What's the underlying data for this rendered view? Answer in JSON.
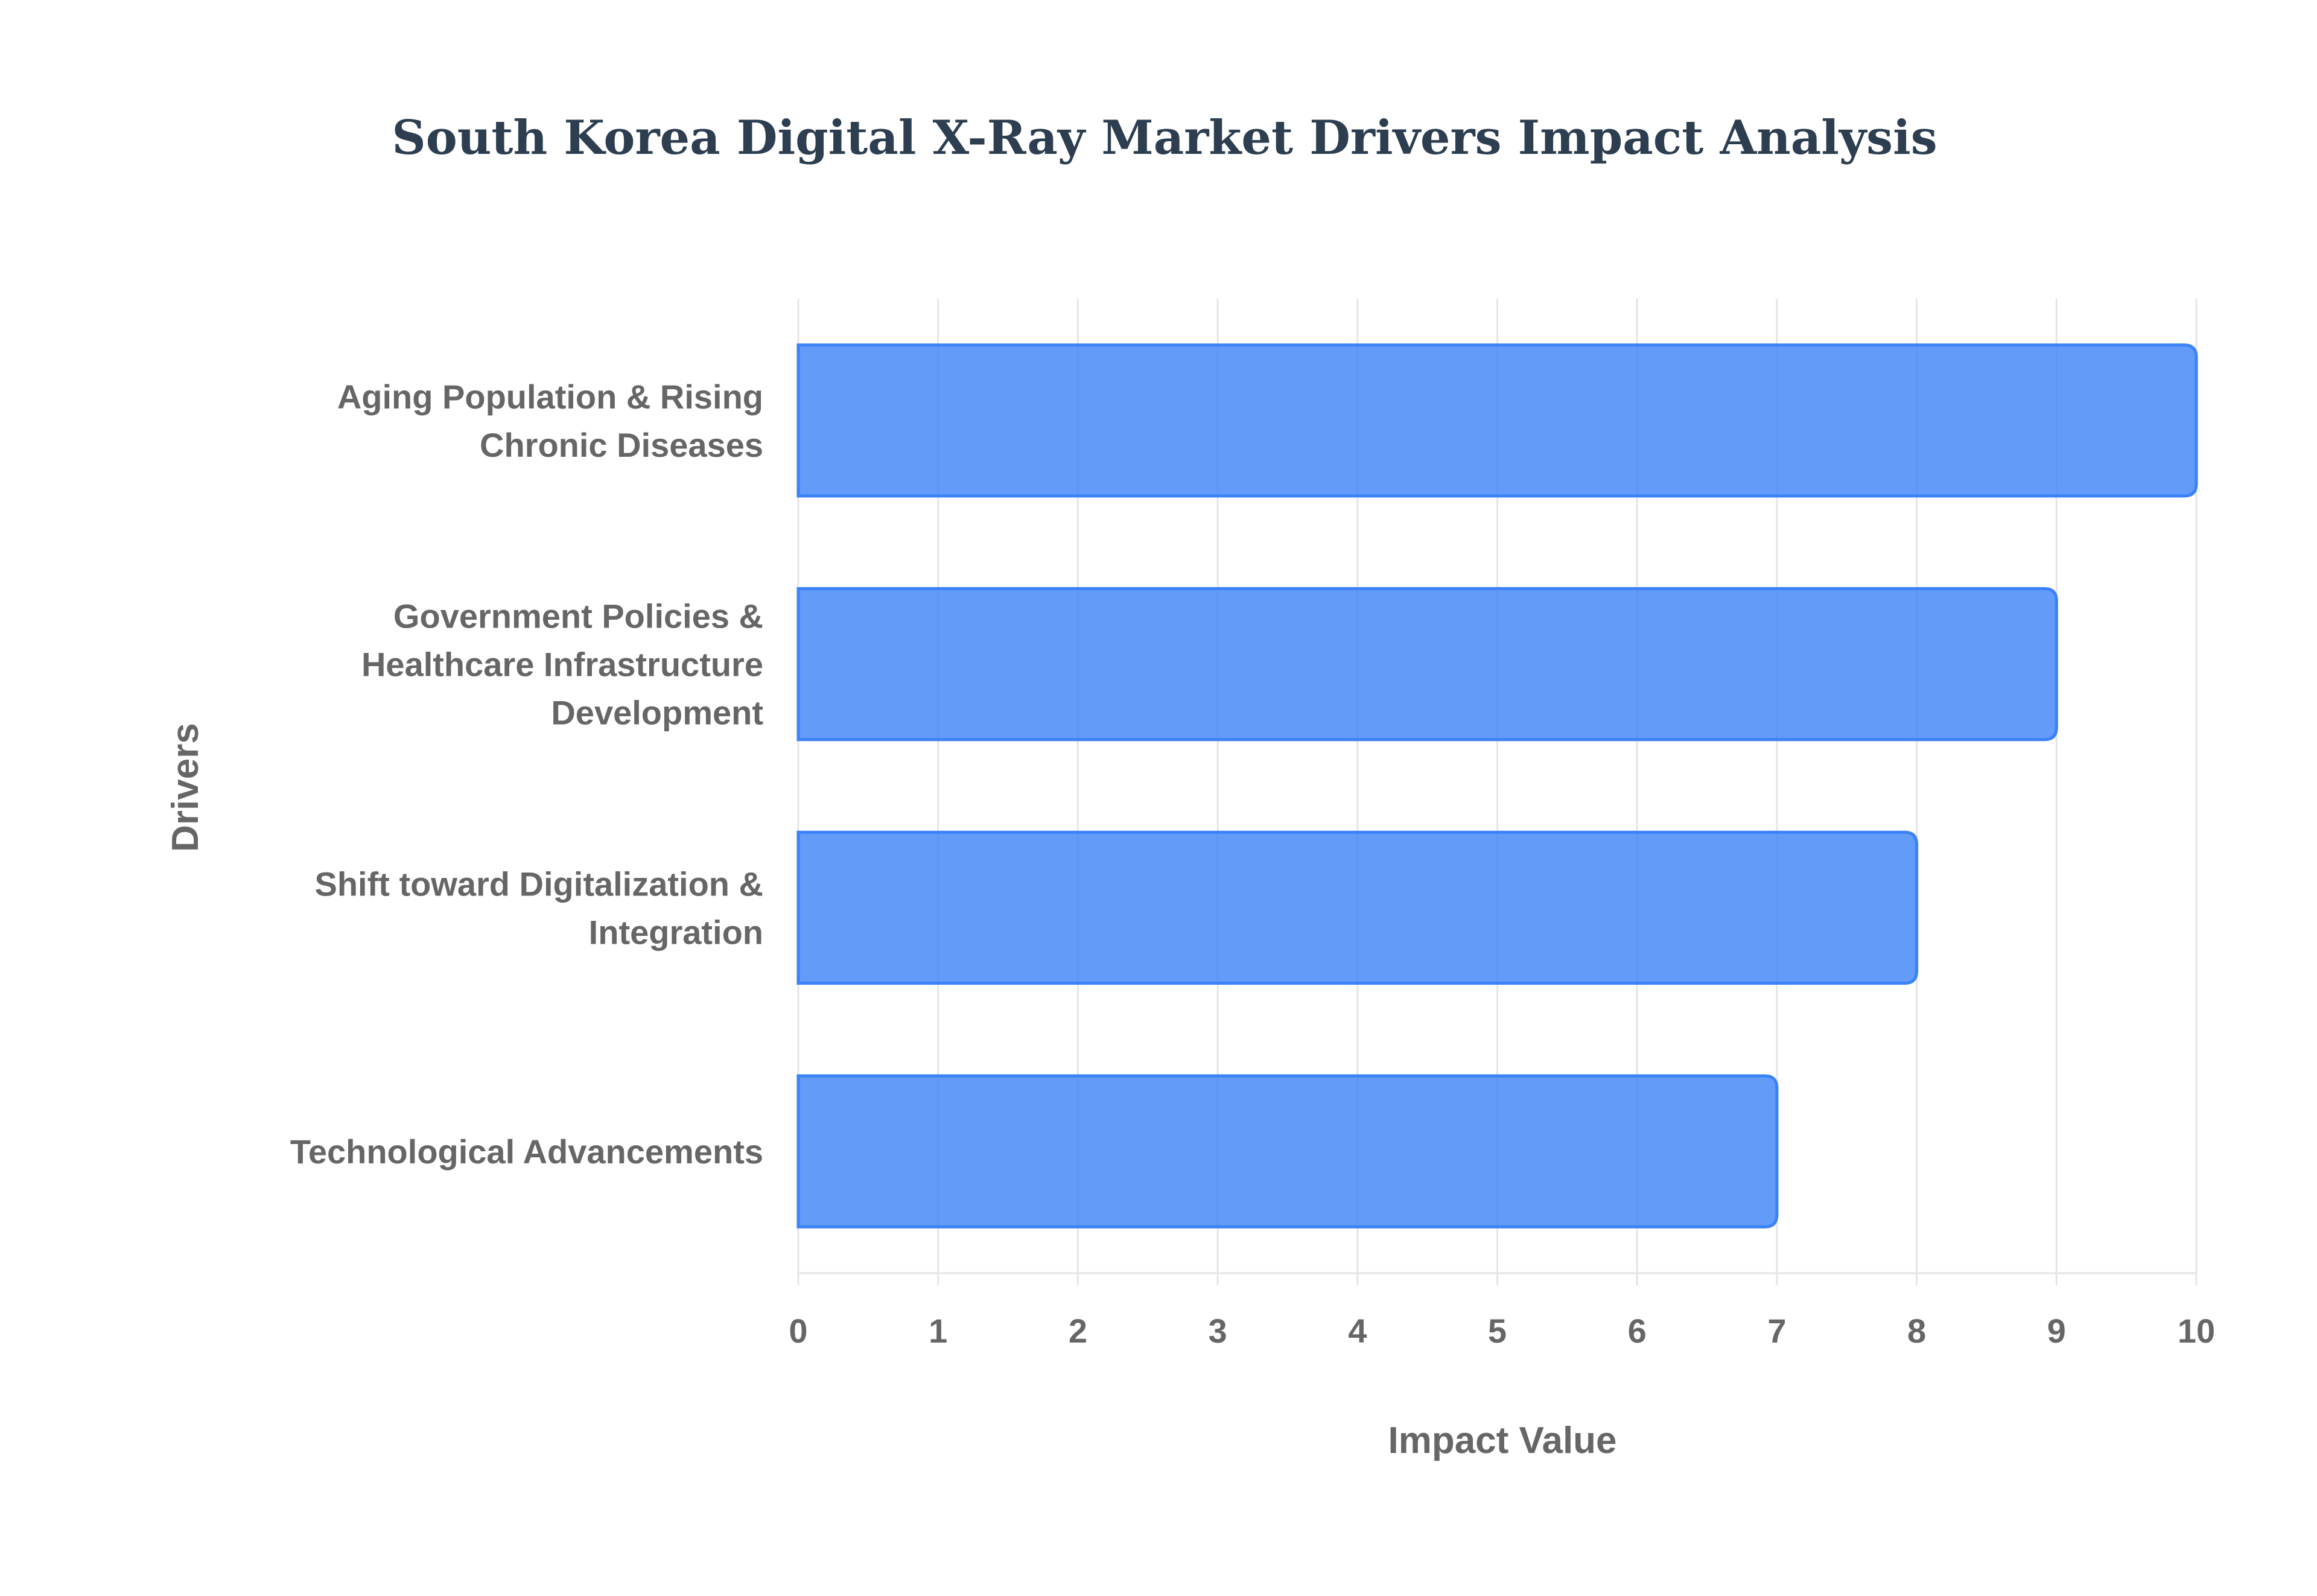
{
  "chart_data": {
    "type": "bar",
    "orientation": "horizontal",
    "title": "South Korea Digital X-Ray Market Drivers Impact Analysis",
    "xlabel": "Impact Value",
    "ylabel": "Drivers",
    "categories": [
      [
        "Aging Population & Rising",
        "Chronic Diseases"
      ],
      [
        "Government Policies &",
        "Healthcare Infrastructure",
        "Development"
      ],
      [
        "Shift toward Digitalization &",
        "Integration"
      ],
      [
        "Technological Advancements"
      ]
    ],
    "values": [
      10,
      9,
      8,
      7
    ],
    "xlim": [
      0,
      10
    ],
    "x_ticks": [
      "0",
      "1",
      "2",
      "3",
      "4",
      "5",
      "6",
      "7",
      "8",
      "9",
      "10"
    ],
    "grid": true,
    "legend": "none",
    "colors": {
      "bar_fill": "#3b82f6",
      "bar_border": "#3b82f6",
      "grid": "#e5e5e5",
      "text": "#666666",
      "title": "#2c3e50"
    }
  }
}
